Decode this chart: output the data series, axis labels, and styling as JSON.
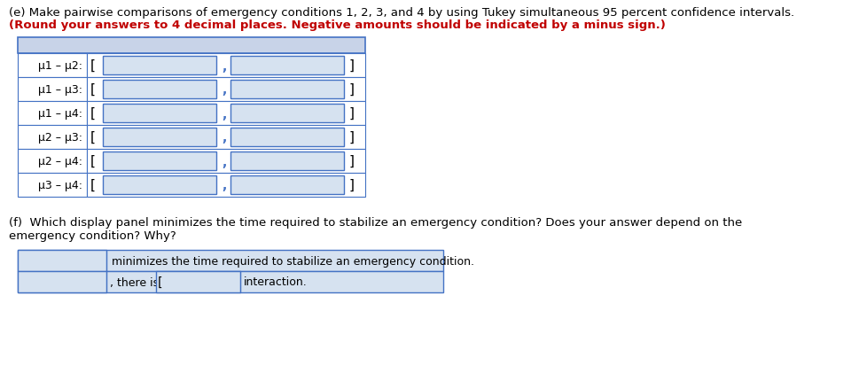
{
  "title_line1": "(e) Make pairwise comparisons of emergency conditions 1, 2, 3, and 4 by using Tukey simultaneous 95 percent confidence intervals.",
  "title_line2": "(Round your answers to 4 decimal places. Negative amounts should be indicated by a minus sign.)",
  "table_rows": [
    "μ1 – μ2:",
    "μ1 – μ3:",
    "μ1 – μ4:",
    "μ2 – μ3:",
    "μ2 – μ4:",
    "μ3 – μ4:"
  ],
  "section_f_line1": "(f)  Which display panel minimizes the time required to stabilize an emergency condition? Does your answer depend on the",
  "section_f_line2": "emergency condition? Why?",
  "bottom_row1_text": "minimizes the time required to stabilize an emergency condition.",
  "bottom_row2_text1": ", there is",
  "bottom_row2_text2": "interaction.",
  "header_color": "#c8d3e8",
  "row_bg_color": "#ffffff",
  "input_box_color": "#d6e2f0",
  "border_color": "#4472c4",
  "text_black": "#000000",
  "text_red": "#c00000",
  "bottom_table_bg": "#d6e2f0"
}
